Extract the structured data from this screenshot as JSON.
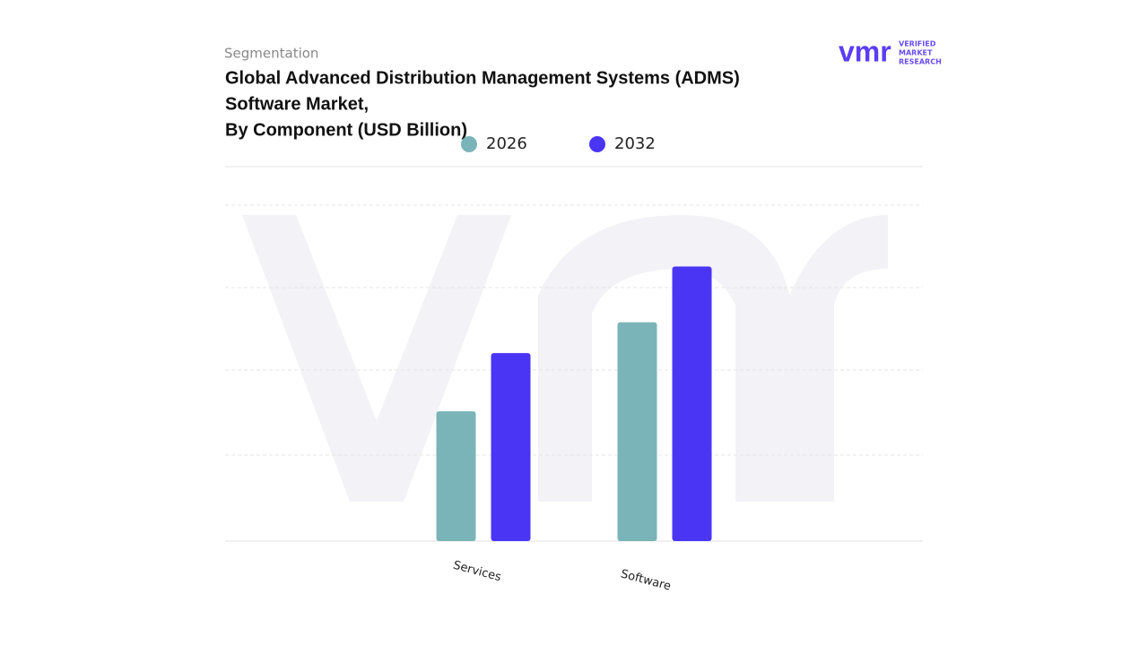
{
  "subtitle": "Segmentation",
  "logo": {
    "mark": "vmr",
    "lines": [
      "VERIFIED",
      "MARKET",
      "RESEARCH"
    ]
  },
  "chart_data": {
    "type": "bar",
    "title": [
      "Global Advanced Distribution Management Systems (ADMS)",
      "Software Market,",
      "By Component (USD Billion)"
    ],
    "categories": [
      "Services",
      "Software"
    ],
    "series": [
      {
        "name": "2026",
        "color": "#7ab4b8",
        "values": [
          1.56,
          2.63
        ]
      },
      {
        "name": "2032",
        "color": "#4b35f5",
        "values": [
          2.26,
          3.3
        ]
      }
    ],
    "ylim": [
      0,
      4.5
    ]
  }
}
